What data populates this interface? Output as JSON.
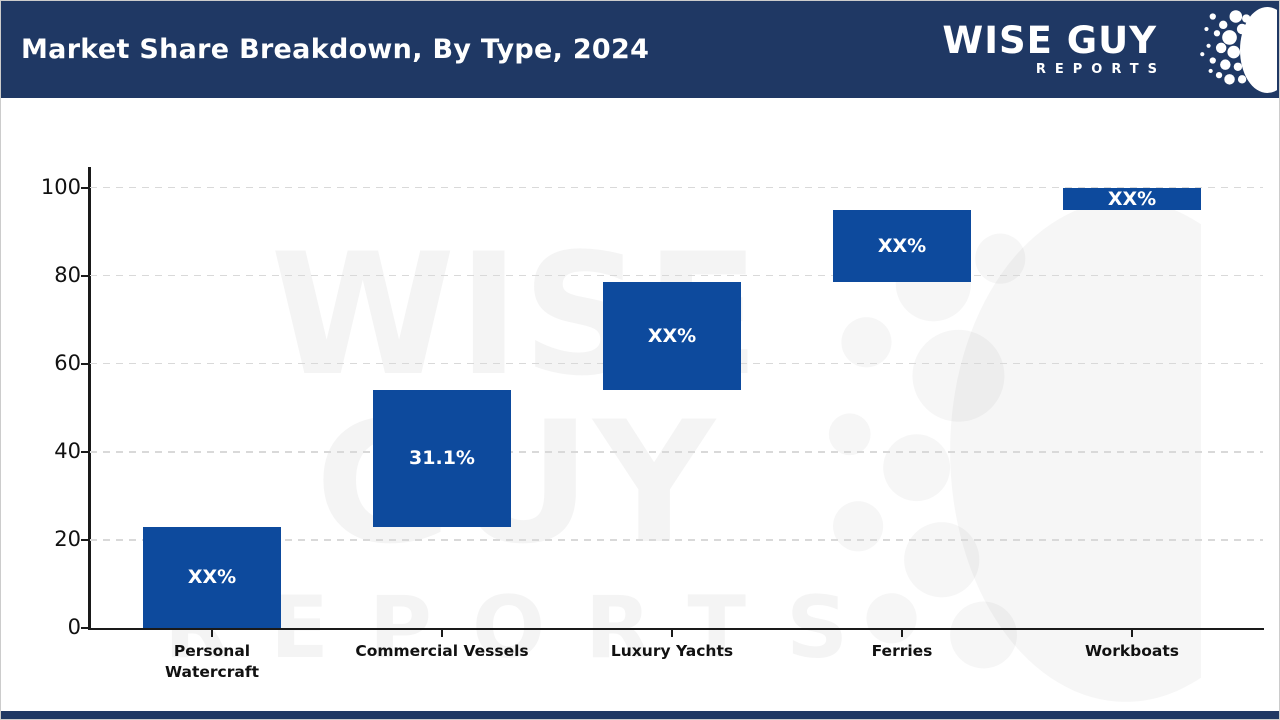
{
  "header": {
    "title": "Market Share Breakdown, By Type, 2024",
    "bg_color": "#1f3864",
    "logo": {
      "line1": "WISE GUY",
      "line2": "REPORTS"
    }
  },
  "watermark": {
    "line1": "WISE GUY",
    "line2": "REPORTS"
  },
  "chart_data": {
    "type": "bar",
    "subtype": "waterfall",
    "title": "Market Share Breakdown, By Type, 2024",
    "categories": [
      "Personal\nWatercraft",
      "Commercial Vessels",
      "Luxury Yachts",
      "Ferries",
      "Workboats"
    ],
    "values": [
      23.0,
      31.1,
      24.5,
      16.3,
      5.1
    ],
    "bar_starts": [
      0,
      23.0,
      54.1,
      78.6,
      94.9
    ],
    "bar_ends": [
      23.0,
      54.1,
      78.6,
      94.9,
      100
    ],
    "bar_labels": [
      "XX%",
      "31.1%",
      "XX%",
      "XX%",
      "XX%"
    ],
    "yticks": [
      0,
      20,
      40,
      60,
      80,
      100
    ],
    "ylim": [
      0,
      100
    ],
    "xlabel": "",
    "ylabel": "",
    "grid": "horizontal-dashed",
    "legend": "none",
    "bar_color": "#0d4a9d",
    "bar_label_color": "#ffffff",
    "axis_color": "#1a1a1a",
    "gridline_color": "#d9d9d9"
  }
}
